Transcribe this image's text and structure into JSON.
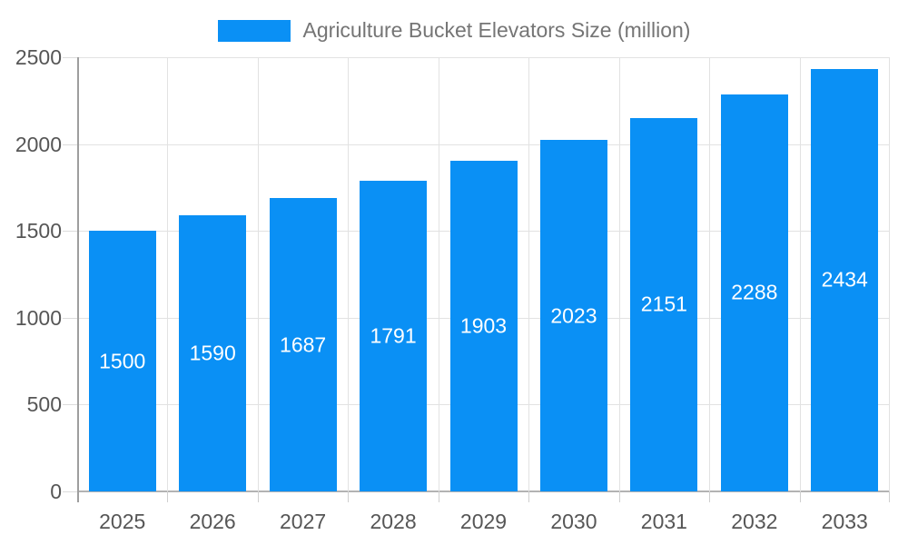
{
  "chart_data": {
    "type": "bar",
    "title": "Agriculture Bucket Elevators Size (million)",
    "categories": [
      "2025",
      "2026",
      "2027",
      "2028",
      "2029",
      "2030",
      "2031",
      "2032",
      "2033"
    ],
    "values": [
      1500,
      1590,
      1687,
      1791,
      1903,
      2023,
      2151,
      2288,
      2434
    ],
    "xlabel": "",
    "ylabel": "",
    "ylim": [
      0,
      2500
    ],
    "yticks": [
      0,
      500,
      1000,
      1500,
      2000,
      2500
    ],
    "grid": true,
    "legend_position": "top-center",
    "bar_color": "#0a90f5",
    "value_label_color": "#ffffff",
    "axis_text_color": "#565656",
    "legend_text_color": "#757575",
    "gridline_color": "#e2e2e2",
    "baseline_color": "#b3b3b3",
    "axis_line_color": "#9e9e9e"
  }
}
